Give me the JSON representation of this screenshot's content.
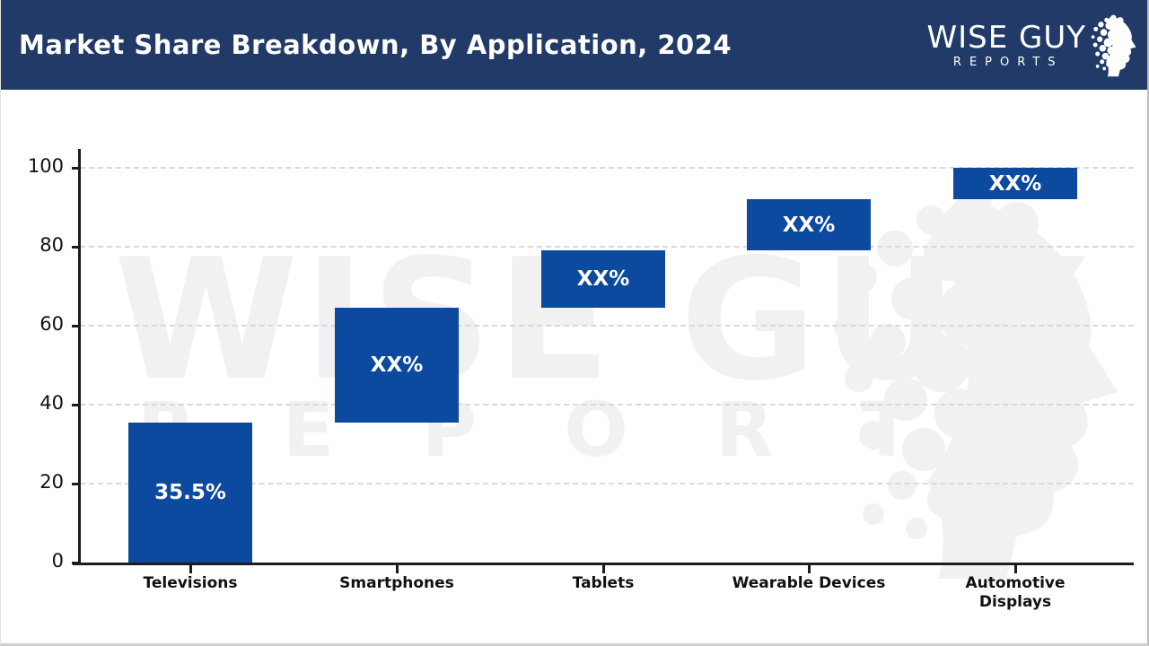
{
  "header": {
    "title": "Market Share Breakdown, By Application, 2024",
    "logo": {
      "line1": "WISE GUY",
      "line2": "REPORTS"
    }
  },
  "watermark": {
    "line1": "WISE GUY",
    "line2": "R E P O R T S"
  },
  "colors": {
    "header_bg": "#213a67",
    "page_bg": "#ffffff",
    "bar_fill": "#0b4a9f",
    "bar_label_text": "#ffffff",
    "axis": "#1c1c1c",
    "tick_label": "#111111",
    "gridline": "#d9d9d9",
    "watermark": "#f1f1f1"
  },
  "chart_data": {
    "type": "bar",
    "subtype": "waterfall",
    "title": "Market Share Breakdown, By Application, 2024",
    "categories": [
      "Televisions",
      "Smartphones",
      "Tablets",
      "Wearable Devices",
      "Automotive Displays"
    ],
    "segments": [
      {
        "category": "Televisions",
        "start": 0,
        "end": 35.5,
        "label": "35.5%"
      },
      {
        "category": "Smartphones",
        "start": 35.5,
        "end": 64.5,
        "label": "XX%"
      },
      {
        "category": "Tablets",
        "start": 64.5,
        "end": 79,
        "label": "XX%"
      },
      {
        "category": "Wearable Devices",
        "start": 79,
        "end": 92,
        "label": "XX%"
      },
      {
        "category": "Automotive Displays",
        "start": 92,
        "end": 100,
        "label": "XX%"
      }
    ],
    "xlabel": "",
    "ylabel": "",
    "ylim": [
      0,
      105
    ],
    "yticks": [
      0,
      20,
      40,
      60,
      80,
      100
    ],
    "grid": "horizontal-dashed",
    "legend": "none"
  }
}
